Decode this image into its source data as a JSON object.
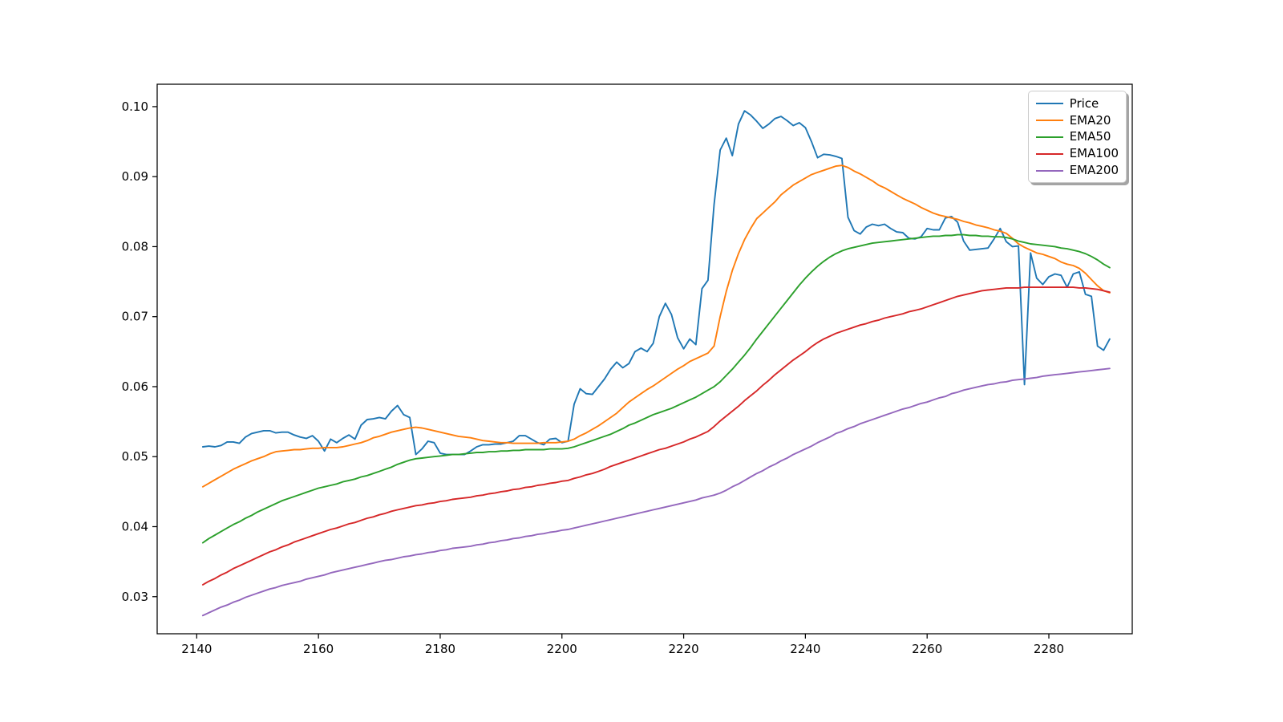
{
  "figure": {
    "background": "#ffffff"
  },
  "chart_data": {
    "type": "line",
    "title": "",
    "xlabel": "",
    "ylabel": "",
    "grid": false,
    "xlim": [
      2133.5,
      2293.7
    ],
    "ylim": [
      0.0247,
      0.1032
    ],
    "x_ticks": [
      2140,
      2160,
      2180,
      2200,
      2220,
      2240,
      2260,
      2280
    ],
    "x_tick_labels": [
      "2140",
      "2160",
      "2180",
      "2200",
      "2220",
      "2240",
      "2260",
      "2280"
    ],
    "y_ticks": [
      0.03,
      0.04,
      0.05,
      0.06,
      0.07,
      0.08,
      0.09,
      0.1
    ],
    "y_tick_labels": [
      "0.03",
      "0.04",
      "0.05",
      "0.06",
      "0.07",
      "0.08",
      "0.09",
      "0.10"
    ],
    "legend": {
      "position": "upper right",
      "entries": [
        "Price",
        "EMA20",
        "EMA50",
        "EMA100",
        "EMA200"
      ]
    },
    "x": [
      2141,
      2142,
      2143,
      2144,
      2145,
      2146,
      2147,
      2148,
      2149,
      2150,
      2151,
      2152,
      2153,
      2154,
      2155,
      2156,
      2157,
      2158,
      2159,
      2160,
      2161,
      2162,
      2163,
      2164,
      2165,
      2166,
      2167,
      2168,
      2169,
      2170,
      2171,
      2172,
      2173,
      2174,
      2175,
      2176,
      2177,
      2178,
      2179,
      2180,
      2181,
      2182,
      2183,
      2184,
      2185,
      2186,
      2187,
      2188,
      2189,
      2190,
      2191,
      2192,
      2193,
      2194,
      2195,
      2196,
      2197,
      2198,
      2199,
      2200,
      2201,
      2202,
      2203,
      2204,
      2205,
      2206,
      2207,
      2208,
      2209,
      2210,
      2211,
      2212,
      2213,
      2214,
      2215,
      2216,
      2217,
      2218,
      2219,
      2220,
      2221,
      2222,
      2223,
      2224,
      2225,
      2226,
      2227,
      2228,
      2229,
      2230,
      2231,
      2232,
      2233,
      2234,
      2235,
      2236,
      2237,
      2238,
      2239,
      2240,
      2241,
      2242,
      2243,
      2244,
      2245,
      2246,
      2247,
      2248,
      2249,
      2250,
      2251,
      2252,
      2253,
      2254,
      2255,
      2256,
      2257,
      2258,
      2259,
      2260,
      2261,
      2262,
      2263,
      2264,
      2265,
      2266,
      2267,
      2268,
      2269,
      2270,
      2271,
      2272,
      2273,
      2274,
      2275,
      2276,
      2277,
      2278,
      2279,
      2280,
      2281,
      2282,
      2283,
      2284,
      2285,
      2286,
      2287,
      2288,
      2289,
      2290
    ],
    "series": [
      {
        "name": "Price",
        "color": "#1f77b4",
        "values": [
          0.0514,
          0.0515,
          0.0514,
          0.0516,
          0.0521,
          0.0521,
          0.0519,
          0.0528,
          0.0533,
          0.0535,
          0.0537,
          0.0537,
          0.0534,
          0.0535,
          0.0535,
          0.0531,
          0.0528,
          0.0526,
          0.053,
          0.0522,
          0.0508,
          0.0525,
          0.052,
          0.0526,
          0.0531,
          0.0525,
          0.0545,
          0.0553,
          0.0554,
          0.0556,
          0.0554,
          0.0565,
          0.0573,
          0.056,
          0.0556,
          0.0503,
          0.0511,
          0.0522,
          0.052,
          0.0505,
          0.0503,
          0.0503,
          0.0503,
          0.0503,
          0.0508,
          0.0514,
          0.0517,
          0.0517,
          0.0518,
          0.0518,
          0.052,
          0.0522,
          0.053,
          0.053,
          0.0525,
          0.052,
          0.0517,
          0.0525,
          0.0526,
          0.052,
          0.0522,
          0.0575,
          0.0597,
          0.059,
          0.0589,
          0.06,
          0.0611,
          0.0625,
          0.0635,
          0.0627,
          0.0633,
          0.065,
          0.0655,
          0.065,
          0.0662,
          0.07,
          0.0719,
          0.0703,
          0.067,
          0.0654,
          0.0668,
          0.066,
          0.074,
          0.0752,
          0.086,
          0.0938,
          0.0955,
          0.093,
          0.0975,
          0.0994,
          0.0988,
          0.0979,
          0.0969,
          0.0975,
          0.0983,
          0.0986,
          0.098,
          0.0973,
          0.0977,
          0.097,
          0.095,
          0.0927,
          0.0932,
          0.0931,
          0.0929,
          0.0926,
          0.0842,
          0.0823,
          0.0818,
          0.0828,
          0.0832,
          0.083,
          0.0832,
          0.0826,
          0.0821,
          0.082,
          0.0812,
          0.0811,
          0.0814,
          0.0826,
          0.0824,
          0.0824,
          0.0841,
          0.0843,
          0.0835,
          0.0808,
          0.0795,
          0.0796,
          0.0797,
          0.0798,
          0.0811,
          0.0826,
          0.0807,
          0.08,
          0.0801,
          0.0603,
          0.0791,
          0.0755,
          0.0746,
          0.0757,
          0.0761,
          0.0759,
          0.0742,
          0.0761,
          0.0764,
          0.0732,
          0.0729,
          0.0658,
          0.0652,
          0.0668
        ]
      },
      {
        "name": "EMA20",
        "color": "#ff7f0e",
        "values": [
          0.0457,
          0.0462,
          0.0467,
          0.0472,
          0.0477,
          0.0482,
          0.0486,
          0.049,
          0.0494,
          0.0497,
          0.05,
          0.0504,
          0.0507,
          0.0508,
          0.0509,
          0.051,
          0.051,
          0.0511,
          0.0512,
          0.0512,
          0.0513,
          0.0513,
          0.0513,
          0.0514,
          0.0516,
          0.0518,
          0.052,
          0.0523,
          0.0527,
          0.0529,
          0.0532,
          0.0535,
          0.0537,
          0.0539,
          0.0541,
          0.0542,
          0.0541,
          0.0539,
          0.0537,
          0.0535,
          0.0533,
          0.0531,
          0.0529,
          0.0528,
          0.0527,
          0.0525,
          0.0523,
          0.0522,
          0.0521,
          0.052,
          0.052,
          0.0519,
          0.0519,
          0.0519,
          0.0519,
          0.0519,
          0.052,
          0.052,
          0.052,
          0.0521,
          0.0522,
          0.0525,
          0.053,
          0.0534,
          0.0539,
          0.0544,
          0.055,
          0.0556,
          0.0562,
          0.057,
          0.0578,
          0.0584,
          0.059,
          0.0596,
          0.0601,
          0.0607,
          0.0613,
          0.0619,
          0.0625,
          0.063,
          0.0636,
          0.064,
          0.0644,
          0.0648,
          0.0658,
          0.07,
          0.0736,
          0.0766,
          0.079,
          0.081,
          0.0826,
          0.084,
          0.0848,
          0.0856,
          0.0864,
          0.0874,
          0.0881,
          0.0888,
          0.0893,
          0.0898,
          0.0903,
          0.0906,
          0.0909,
          0.0912,
          0.0915,
          0.0916,
          0.0913,
          0.0908,
          0.0904,
          0.0899,
          0.0894,
          0.0888,
          0.0884,
          0.0879,
          0.0874,
          0.0869,
          0.0865,
          0.0861,
          0.0856,
          0.0852,
          0.0848,
          0.0845,
          0.0843,
          0.0841,
          0.0839,
          0.0836,
          0.0834,
          0.0831,
          0.0829,
          0.0827,
          0.0824,
          0.0822,
          0.0819,
          0.0812,
          0.0804,
          0.0799,
          0.0795,
          0.0791,
          0.0789,
          0.0786,
          0.0783,
          0.0778,
          0.0775,
          0.0773,
          0.0769,
          0.0762,
          0.0753,
          0.0744,
          0.0737,
          0.0734
        ]
      },
      {
        "name": "EMA50",
        "color": "#2ca02c",
        "values": [
          0.0377,
          0.0383,
          0.0388,
          0.0393,
          0.0398,
          0.0403,
          0.0407,
          0.0412,
          0.0416,
          0.0421,
          0.0425,
          0.0429,
          0.0433,
          0.0437,
          0.044,
          0.0443,
          0.0446,
          0.0449,
          0.0452,
          0.0455,
          0.0457,
          0.0459,
          0.0461,
          0.0464,
          0.0466,
          0.0468,
          0.0471,
          0.0473,
          0.0476,
          0.0479,
          0.0482,
          0.0485,
          0.0489,
          0.0492,
          0.0495,
          0.0497,
          0.0498,
          0.0499,
          0.05,
          0.0501,
          0.0502,
          0.0503,
          0.0503,
          0.0504,
          0.0505,
          0.0506,
          0.0506,
          0.0507,
          0.0507,
          0.0508,
          0.0508,
          0.0509,
          0.0509,
          0.051,
          0.051,
          0.051,
          0.051,
          0.0511,
          0.0511,
          0.0511,
          0.0512,
          0.0514,
          0.0517,
          0.052,
          0.0523,
          0.0526,
          0.0529,
          0.0532,
          0.0536,
          0.054,
          0.0545,
          0.0548,
          0.0552,
          0.0556,
          0.056,
          0.0563,
          0.0566,
          0.0569,
          0.0573,
          0.0577,
          0.0581,
          0.0585,
          0.059,
          0.0595,
          0.06,
          0.0607,
          0.0616,
          0.0625,
          0.0635,
          0.0645,
          0.0656,
          0.0668,
          0.0679,
          0.069,
          0.0701,
          0.0712,
          0.0723,
          0.0734,
          0.0745,
          0.0755,
          0.0764,
          0.0772,
          0.0779,
          0.0785,
          0.079,
          0.0794,
          0.0797,
          0.0799,
          0.0801,
          0.0803,
          0.0805,
          0.0806,
          0.0807,
          0.0808,
          0.0809,
          0.081,
          0.0811,
          0.0812,
          0.0813,
          0.0814,
          0.0815,
          0.0815,
          0.0816,
          0.0816,
          0.0817,
          0.0817,
          0.0816,
          0.0816,
          0.0815,
          0.0815,
          0.0814,
          0.0814,
          0.0813,
          0.0811,
          0.0808,
          0.0806,
          0.0804,
          0.0803,
          0.0802,
          0.0801,
          0.08,
          0.0798,
          0.0797,
          0.0795,
          0.0793,
          0.079,
          0.0786,
          0.0781,
          0.0775,
          0.077
        ]
      },
      {
        "name": "EMA100",
        "color": "#d62728",
        "values": [
          0.0317,
          0.0322,
          0.0326,
          0.0331,
          0.0335,
          0.034,
          0.0344,
          0.0348,
          0.0352,
          0.0356,
          0.036,
          0.0364,
          0.0367,
          0.0371,
          0.0374,
          0.0378,
          0.0381,
          0.0384,
          0.0387,
          0.039,
          0.0393,
          0.0396,
          0.0398,
          0.0401,
          0.0404,
          0.0406,
          0.0409,
          0.0412,
          0.0414,
          0.0417,
          0.0419,
          0.0422,
          0.0424,
          0.0426,
          0.0428,
          0.043,
          0.0431,
          0.0433,
          0.0434,
          0.0436,
          0.0437,
          0.0439,
          0.044,
          0.0441,
          0.0442,
          0.0444,
          0.0445,
          0.0447,
          0.0448,
          0.045,
          0.0451,
          0.0453,
          0.0454,
          0.0456,
          0.0457,
          0.0459,
          0.046,
          0.0462,
          0.0463,
          0.0465,
          0.0466,
          0.0469,
          0.0471,
          0.0474,
          0.0476,
          0.0479,
          0.0482,
          0.0486,
          0.0489,
          0.0492,
          0.0495,
          0.0498,
          0.0501,
          0.0504,
          0.0507,
          0.051,
          0.0512,
          0.0515,
          0.0518,
          0.0521,
          0.0525,
          0.0528,
          0.0532,
          0.0536,
          0.0543,
          0.0551,
          0.0558,
          0.0565,
          0.0572,
          0.058,
          0.0587,
          0.0594,
          0.0602,
          0.0609,
          0.0617,
          0.0624,
          0.0631,
          0.0638,
          0.0644,
          0.065,
          0.0657,
          0.0663,
          0.0668,
          0.0672,
          0.0676,
          0.0679,
          0.0682,
          0.0685,
          0.0688,
          0.069,
          0.0693,
          0.0695,
          0.0698,
          0.07,
          0.0702,
          0.0704,
          0.0707,
          0.0709,
          0.0711,
          0.0714,
          0.0717,
          0.072,
          0.0723,
          0.0726,
          0.0729,
          0.0731,
          0.0733,
          0.0735,
          0.0737,
          0.0738,
          0.0739,
          0.074,
          0.0741,
          0.0741,
          0.0741,
          0.0742,
          0.0742,
          0.0742,
          0.0742,
          0.0742,
          0.0742,
          0.0742,
          0.0742,
          0.0742,
          0.0741,
          0.0741,
          0.074,
          0.0739,
          0.0737,
          0.0735
        ]
      },
      {
        "name": "EMA200",
        "color": "#9467bd",
        "values": [
          0.0273,
          0.0277,
          0.0281,
          0.0285,
          0.0288,
          0.0292,
          0.0295,
          0.0299,
          0.0302,
          0.0305,
          0.0308,
          0.0311,
          0.0313,
          0.0316,
          0.0318,
          0.032,
          0.0322,
          0.0325,
          0.0327,
          0.0329,
          0.0331,
          0.0334,
          0.0336,
          0.0338,
          0.034,
          0.0342,
          0.0344,
          0.0346,
          0.0348,
          0.035,
          0.0352,
          0.0353,
          0.0355,
          0.0357,
          0.0358,
          0.036,
          0.0361,
          0.0363,
          0.0364,
          0.0366,
          0.0367,
          0.0369,
          0.037,
          0.0371,
          0.0372,
          0.0374,
          0.0375,
          0.0377,
          0.0378,
          0.038,
          0.0381,
          0.0383,
          0.0384,
          0.0386,
          0.0387,
          0.0389,
          0.039,
          0.0392,
          0.0393,
          0.0395,
          0.0396,
          0.0398,
          0.04,
          0.0402,
          0.0404,
          0.0406,
          0.0408,
          0.041,
          0.0412,
          0.0414,
          0.0416,
          0.0418,
          0.042,
          0.0422,
          0.0424,
          0.0426,
          0.0428,
          0.043,
          0.0432,
          0.0434,
          0.0436,
          0.0438,
          0.0441,
          0.0443,
          0.0445,
          0.0448,
          0.0452,
          0.0457,
          0.0461,
          0.0466,
          0.0471,
          0.0476,
          0.048,
          0.0485,
          0.0489,
          0.0494,
          0.0498,
          0.0503,
          0.0507,
          0.0511,
          0.0515,
          0.052,
          0.0524,
          0.0528,
          0.0533,
          0.0536,
          0.054,
          0.0543,
          0.0547,
          0.055,
          0.0553,
          0.0556,
          0.0559,
          0.0562,
          0.0565,
          0.0568,
          0.057,
          0.0573,
          0.0576,
          0.0578,
          0.0581,
          0.0584,
          0.0586,
          0.059,
          0.0592,
          0.0595,
          0.0597,
          0.0599,
          0.0601,
          0.0603,
          0.0604,
          0.0606,
          0.0607,
          0.0609,
          0.061,
          0.0611,
          0.0612,
          0.0613,
          0.0615,
          0.0616,
          0.0617,
          0.0618,
          0.0619,
          0.062,
          0.0621,
          0.0622,
          0.0623,
          0.0624,
          0.0625,
          0.0626
        ]
      }
    ]
  }
}
